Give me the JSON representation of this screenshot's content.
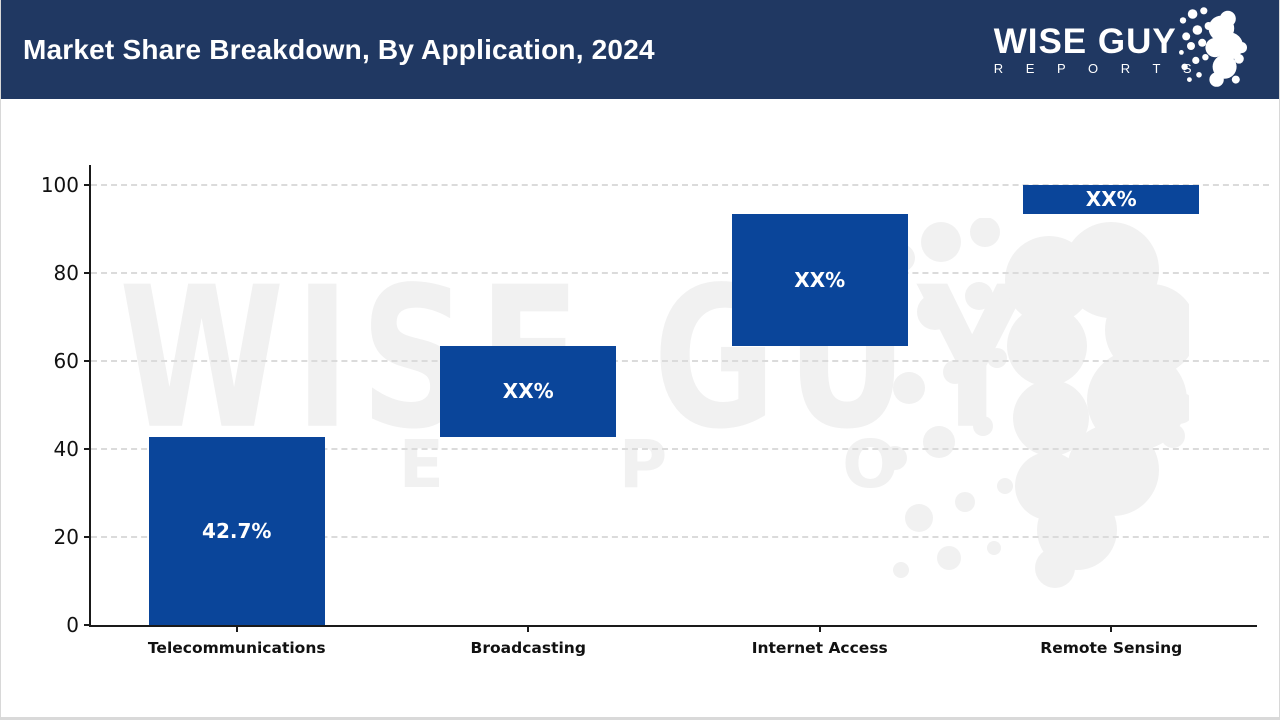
{
  "header": {
    "title": "Market Share Breakdown, By Application, 2024",
    "background": "#203862",
    "logo": {
      "wordmark": "WISE GUY",
      "subtext": "R E P O R T S"
    }
  },
  "watermark": {
    "line1": "WISE GUY",
    "line2": "R E P O R T S",
    "color": "#f1f1f1"
  },
  "chart_data": {
    "type": "bar",
    "subtype": "waterfall",
    "title": "Market Share Breakdown, By Application, 2024",
    "xlabel": "",
    "ylabel": "",
    "ylim": [
      0,
      104.5
    ],
    "y_ticks": [
      0,
      20,
      40,
      60,
      80,
      100
    ],
    "grid": "horizontal dashed",
    "legend": "none",
    "bar_color": "#0a459a",
    "value_label_color": "#ffffff",
    "categories": [
      "Telecommunications",
      "Broadcasting",
      "Internet Access",
      "Remote Sensing"
    ],
    "segments": [
      {
        "category": "Telecommunications",
        "start": 0,
        "end": 42.7,
        "label": "42.7%"
      },
      {
        "category": "Broadcasting",
        "start": 42.7,
        "end": 63.5,
        "label": "XX%"
      },
      {
        "category": "Internet Access",
        "start": 63.5,
        "end": 93.5,
        "label": "XX%"
      },
      {
        "category": "Remote Sensing",
        "start": 93.5,
        "end": 100,
        "label": "XX%"
      }
    ]
  }
}
